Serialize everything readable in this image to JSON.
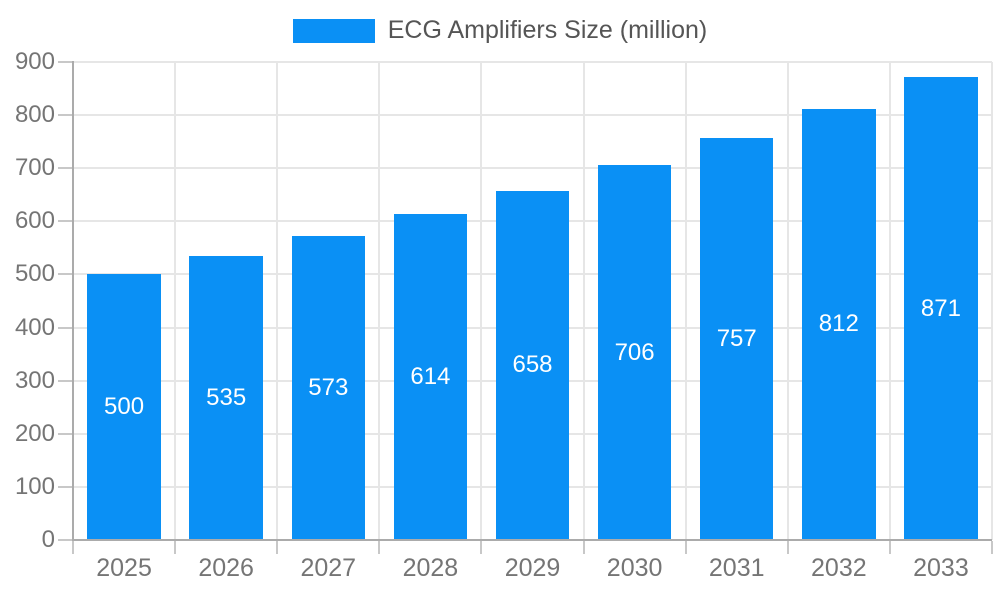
{
  "legend": {
    "label": "ECG Amplifiers Size (million)"
  },
  "chart_data": {
    "type": "bar",
    "title": "ECG Amplifiers Size (million)",
    "categories": [
      "2025",
      "2026",
      "2027",
      "2028",
      "2029",
      "2030",
      "2031",
      "2032",
      "2033"
    ],
    "values": [
      500,
      535,
      573,
      614,
      658,
      706,
      757,
      812,
      871
    ],
    "series": [
      {
        "name": "ECG Amplifiers Size (million)",
        "values": [
          500,
          535,
          573,
          614,
          658,
          706,
          757,
          812,
          871
        ]
      }
    ],
    "xlabel": "",
    "ylabel": "",
    "ylim": [
      0,
      900
    ],
    "yticks": [
      0,
      100,
      200,
      300,
      400,
      500,
      600,
      700,
      800,
      900
    ],
    "grid": true,
    "legend_position": "top",
    "bar_labels_inside": true
  },
  "colors": {
    "bar": "#0a90f5",
    "bar_label": "#ffffff",
    "axis_line": "#ababab",
    "gridline": "#e6e6e6",
    "tick": "#c8c8c8",
    "tick_label": "#757575",
    "legend_text": "#555555",
    "background": "#ffffff"
  }
}
